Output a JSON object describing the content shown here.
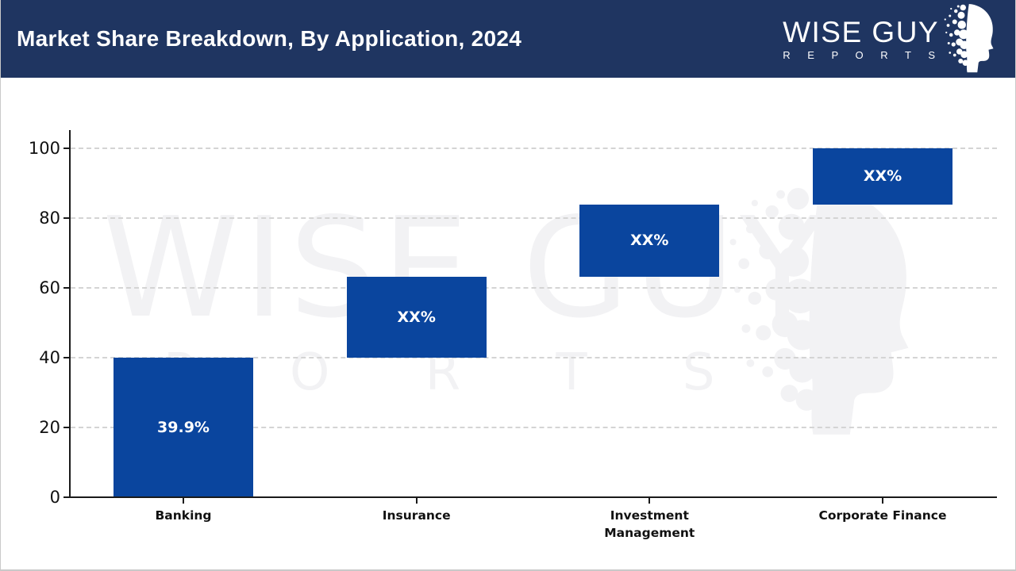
{
  "header": {
    "title": "Market Share Breakdown, By Application, 2024",
    "background": "#1f3561",
    "logo": {
      "line1": "WISE GUY",
      "line2": "R E P O R T S",
      "face_icon": "dotted-head-profile"
    }
  },
  "watermark": {
    "text1": "WISE GUY",
    "text2": "P O R T S",
    "color": "#f2f2f4",
    "face_icon": "dotted-head-profile"
  },
  "chart_data": {
    "type": "bar",
    "subtype": "waterfall",
    "title": "Market Share Breakdown, By Application, 2024",
    "categories": [
      "Banking",
      "Insurance",
      "Investment Management",
      "Corporate Finance"
    ],
    "series": [
      {
        "name": "Market Share",
        "segments": [
          {
            "category": "Banking",
            "start": 0,
            "end": 39.9,
            "label": "39.9%"
          },
          {
            "category": "Insurance",
            "start": 39.9,
            "end": 63.2,
            "label": "XX%"
          },
          {
            "category": "Investment Management",
            "start": 63.2,
            "end": 83.9,
            "label": "XX%"
          },
          {
            "category": "Corporate Finance",
            "start": 83.9,
            "end": 100,
            "label": "XX%"
          }
        ]
      }
    ],
    "xlabel": "",
    "ylabel": "",
    "ylim": [
      0,
      100
    ],
    "yticks": [
      0,
      20,
      40,
      60,
      80,
      100
    ],
    "grid": "horizontal-dashed",
    "legend": "none",
    "bar_color": "#0a459e",
    "bar_label_color": "#ffffff",
    "axis_color": "#1a1a1a",
    "gridline_color": "#d4d4d4"
  }
}
